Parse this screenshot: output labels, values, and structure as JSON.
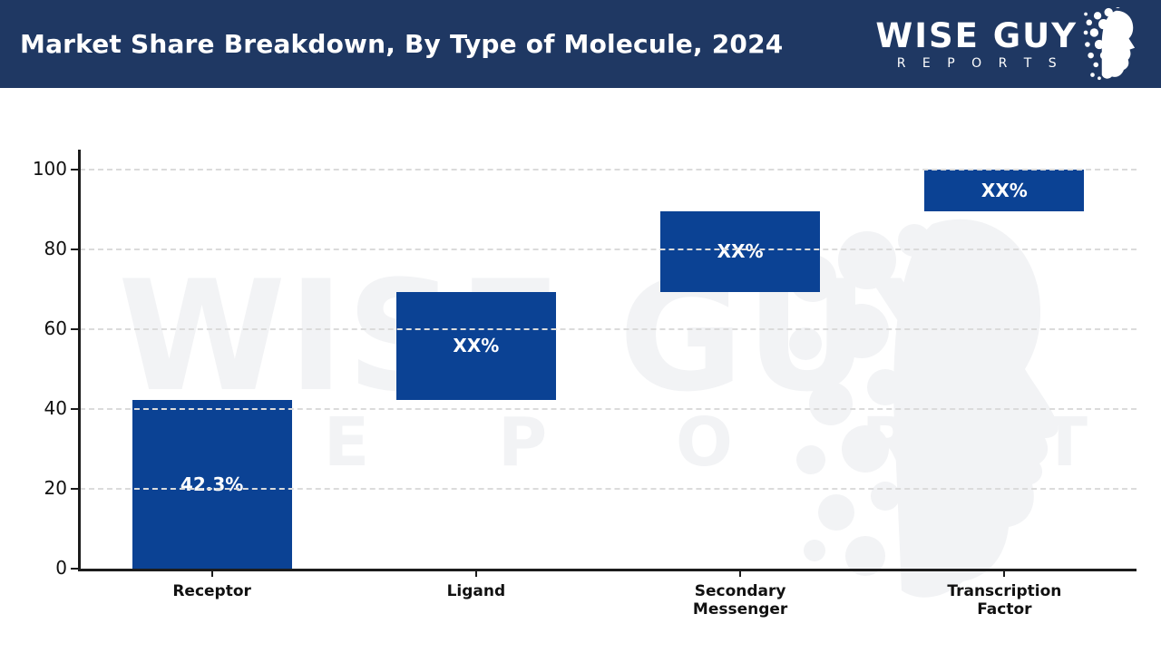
{
  "header": {
    "title": "Market Share Breakdown, By Type of Molecule, 2024",
    "background_color": "#1F3863",
    "logo": {
      "line1": "WISE GUY",
      "line2": "R E P O R T S"
    }
  },
  "watermark": {
    "line1": "WISE GUY",
    "line2": "R E P O R T S",
    "color": "#F2F3F5"
  },
  "chart_data": {
    "type": "bar",
    "subtype": "waterfall",
    "title": "Market Share Breakdown, By Type of Molecule, 2024",
    "categories": [
      "Receptor",
      "Ligand",
      "Secondary Messenger",
      "Transcription Factor"
    ],
    "segments": [
      {
        "category": "Receptor",
        "start": 0,
        "end": 42.3,
        "label": "42.3%"
      },
      {
        "category": "Ligand",
        "start": 42.3,
        "end": 69.3,
        "label": "XX%"
      },
      {
        "category": "Secondary Messenger",
        "start": 69.3,
        "end": 89.5,
        "label": "XX%"
      },
      {
        "category": "Transcription Factor",
        "start": 89.5,
        "end": 100,
        "label": "XX%"
      }
    ],
    "xlabel": "",
    "ylabel": "",
    "ylim": [
      0,
      100
    ],
    "yticks": [
      0,
      20,
      40,
      60,
      80,
      100
    ],
    "grid": "horizontal-dashed",
    "legend": "none",
    "bar_color": "#0B4294",
    "bar_label_color": "#FFFFFF",
    "axis_color": "#1C1C1C",
    "grid_color": "#DBDBDB",
    "tick_label_color": "#111111"
  }
}
